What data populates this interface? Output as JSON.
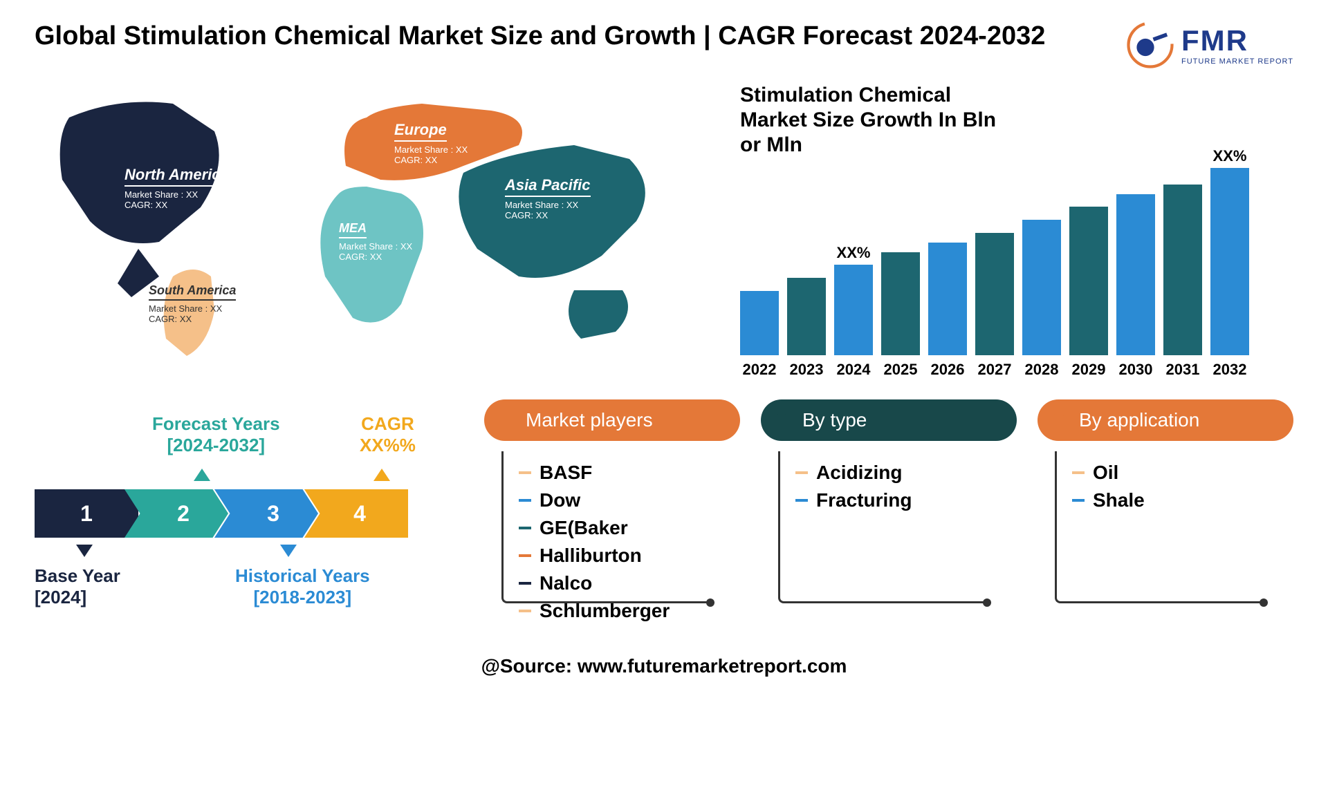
{
  "title": "Global Stimulation Chemical Market Size and Growth | CAGR Forecast 2024-2032",
  "logo": {
    "brand": "FMR",
    "sub": "FUTURE MARKET REPORT"
  },
  "map": {
    "regions": [
      {
        "name": "North America",
        "share": "Market Share : XX",
        "cagr": "CAGR: XX",
        "color": "#1a2540"
      },
      {
        "name": "South America",
        "share": "Market Share : XX",
        "cagr": "CAGR: XX",
        "color": "#f5c089"
      },
      {
        "name": "Europe",
        "share": "Market Share : XX",
        "cagr": "CAGR: XX",
        "color": "#e47838"
      },
      {
        "name": "MEA",
        "share": "Market Share : XX",
        "cagr": "CAGR: XX",
        "color": "#6ec4c4"
      },
      {
        "name": "Asia Pacific",
        "share": "Market Share : XX",
        "cagr": "CAGR: XX",
        "color": "#1d6670"
      }
    ]
  },
  "chart": {
    "title": "Stimulation Chemical Market Size Growth In Bln or Mln",
    "type": "bar",
    "years": [
      "2022",
      "2023",
      "2024",
      "2025",
      "2026",
      "2027",
      "2028",
      "2029",
      "2030",
      "2031",
      "2032"
    ],
    "values": [
      100,
      120,
      140,
      160,
      175,
      190,
      210,
      230,
      250,
      265,
      290
    ],
    "ylim": [
      0,
      300
    ],
    "colors": [
      "#2b8bd4",
      "#1d6670",
      "#2b8bd4",
      "#1d6670",
      "#2b8bd4",
      "#1d6670",
      "#2b8bd4",
      "#1d6670",
      "#2b8bd4",
      "#1d6670",
      "#2b8bd4"
    ],
    "annotations": [
      {
        "index": 2,
        "text": "XX%"
      },
      {
        "index": 10,
        "text": "XX%"
      }
    ]
  },
  "timeline": {
    "segments": [
      {
        "num": "1",
        "color": "#1a2540"
      },
      {
        "num": "2",
        "color": "#2aa79b"
      },
      {
        "num": "3",
        "color": "#2b8bd4"
      },
      {
        "num": "4",
        "color": "#f2a81d"
      }
    ],
    "labels": {
      "base": {
        "title": "Base Year",
        "value": "[2024]",
        "color": "#1a2540"
      },
      "forecast": {
        "title": "Forecast Years",
        "value": "[2024-2032]",
        "color": "#2aa79b"
      },
      "historical": {
        "title": "Historical Years",
        "value": "[2018-2023]",
        "color": "#2b8bd4"
      },
      "cagr": {
        "title": "CAGR",
        "value": "XX%%",
        "color": "#f2a81d"
      }
    }
  },
  "categories": [
    {
      "header": "Market players",
      "header_color": "#e47838",
      "items": [
        {
          "text": "BASF",
          "tick": "#f5c089"
        },
        {
          "text": "Dow",
          "tick": "#2b8bd4"
        },
        {
          "text": "GE(Baker",
          "tick": "#1d6670"
        },
        {
          "text": "Halliburton",
          "tick": "#e47838"
        },
        {
          "text": "Nalco",
          "tick": "#1a2540"
        },
        {
          "text": "Schlumberger",
          "tick": "#f5c089"
        }
      ]
    },
    {
      "header": "By type",
      "header_color": "#18484a",
      "items": [
        {
          "text": "Acidizing",
          "tick": "#f5c089"
        },
        {
          "text": "Fracturing",
          "tick": "#2b8bd4"
        }
      ]
    },
    {
      "header": "By application",
      "header_color": "#e47838",
      "items": [
        {
          "text": "Oil",
          "tick": "#f5c089"
        },
        {
          "text": "Shale",
          "tick": "#2b8bd4"
        }
      ]
    }
  ],
  "source": "@Source: www.futuremarketreport.com"
}
